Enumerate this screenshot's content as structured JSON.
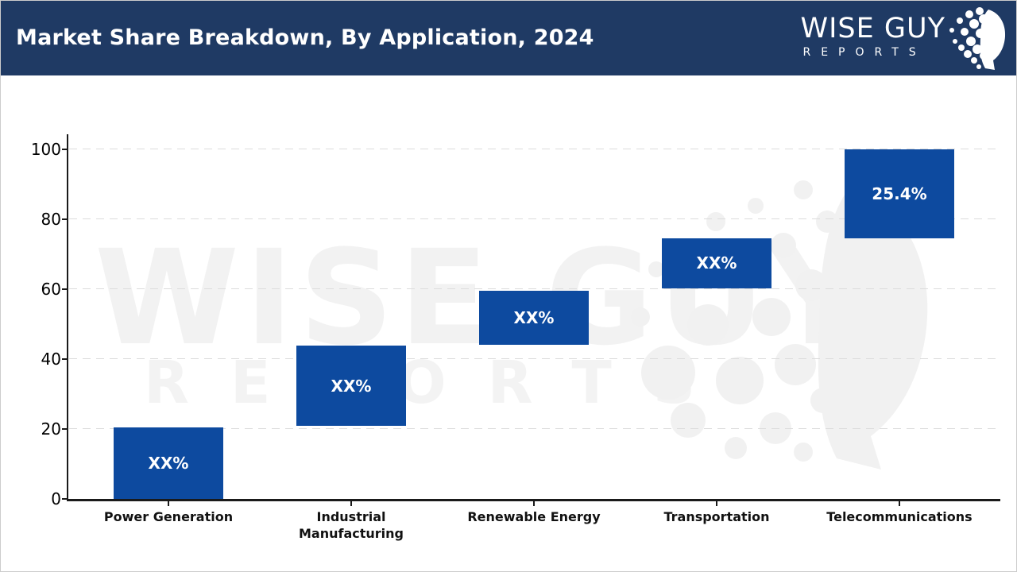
{
  "header": {
    "title": "Market Share Breakdown, By Application, 2024",
    "bg_color": "#1F3A64",
    "logo": {
      "name": "WISE GUY",
      "sub": "REPORTS"
    }
  },
  "watermark": {
    "line1": "WISE GUY",
    "line2": "REPORTS"
  },
  "chart_data": {
    "type": "bar",
    "subtype": "floating-waterfall",
    "title": "Market Share Breakdown, By Application, 2024",
    "xlabel": "",
    "ylabel": "",
    "ylim": [
      0,
      100
    ],
    "yticks": [
      0,
      20,
      40,
      60,
      80,
      100
    ],
    "grid": "horizontal-dashed",
    "legend": "none",
    "bar_color": "#0D4A9F",
    "bar_label_color": "#FFFFFF",
    "categories": [
      "Power Generation",
      "Industrial Manufacturing",
      "Renewable Energy",
      "Transportation",
      "Telecommunications"
    ],
    "bars": [
      {
        "category": "Power Generation",
        "start": 0,
        "end": 20.5,
        "label": "XX%"
      },
      {
        "category": "Industrial Manufacturing",
        "start": 20.8,
        "end": 43.8,
        "label": "XX%"
      },
      {
        "category": "Renewable Energy",
        "start": 44.1,
        "end": 59.6,
        "label": "XX%"
      },
      {
        "category": "Transportation",
        "start": 60.2,
        "end": 74.6,
        "label": "XX%"
      },
      {
        "category": "Telecommunications",
        "start": 74.6,
        "end": 100,
        "label": "25.4%"
      }
    ]
  }
}
